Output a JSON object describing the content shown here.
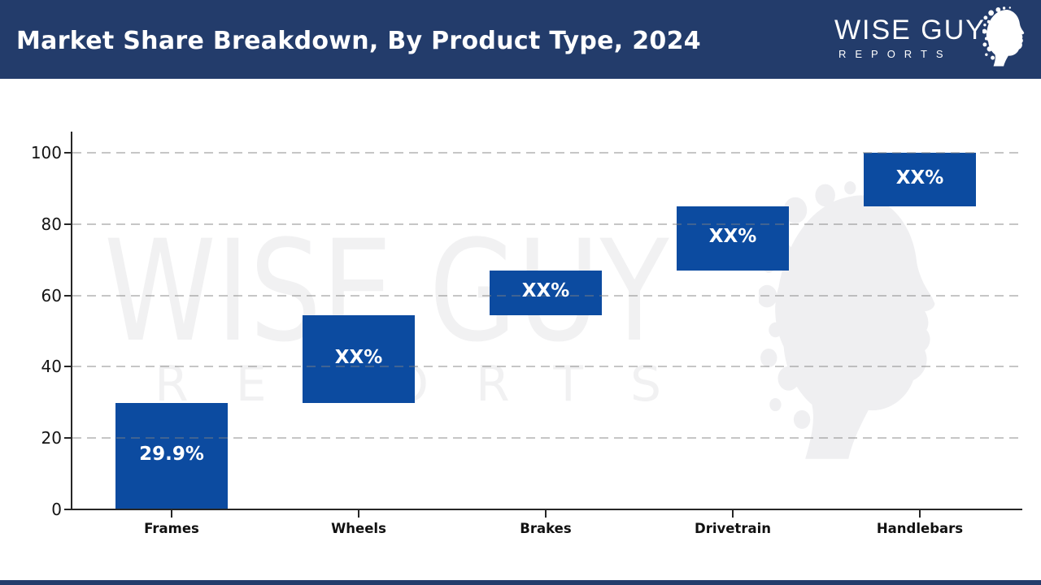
{
  "header": {
    "title": "Market Share Breakdown, By Product Type, 2024",
    "logo": {
      "line1": "WISE GUY",
      "line2": "REPORTS"
    }
  },
  "watermark": {
    "line1": "WISE GUY",
    "line2": "REPORTS"
  },
  "colors": {
    "header_bg": "#233c6b",
    "footer_bg": "#233c6b",
    "bar": "#0c4ba0",
    "bar_label": "#ffffff",
    "axis": "#262626",
    "grid": "#c7c7c7",
    "title_text": "#ffffff",
    "watermark": "#f1f1f2"
  },
  "chart_data": {
    "type": "bar",
    "subtype": "waterfall",
    "title": "Market Share Breakdown, By Product Type, 2024",
    "categories": [
      "Frames",
      "Wheels",
      "Brakes",
      "Drivetrain",
      "Handlebars"
    ],
    "bars": [
      {
        "category": "Frames",
        "start": 0,
        "end": 29.9,
        "label": "29.9%"
      },
      {
        "category": "Wheels",
        "start": 29.9,
        "end": 54.5,
        "label": "XX%"
      },
      {
        "category": "Brakes",
        "start": 54.5,
        "end": 67,
        "label": "XX%"
      },
      {
        "category": "Drivetrain",
        "start": 67,
        "end": 85,
        "label": "XX%"
      },
      {
        "category": "Handlebars",
        "start": 85,
        "end": 100,
        "label": "XX%"
      }
    ],
    "xlabel": "",
    "ylabel": "",
    "ylim": [
      0,
      105
    ],
    "yticks": [
      0,
      20,
      40,
      60,
      80,
      100
    ],
    "grid": "horizontal dashed, drawn over bars",
    "legend": "none"
  }
}
